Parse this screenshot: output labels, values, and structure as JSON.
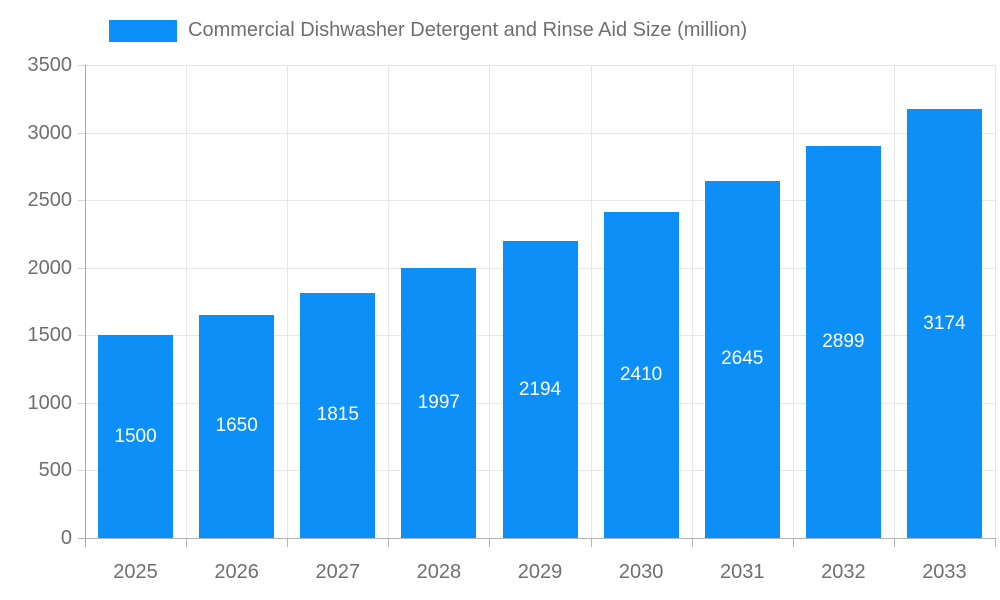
{
  "chart_data": {
    "type": "bar",
    "title": "Commercial Dishwasher Detergent and Rinse Aid Size (million)",
    "categories": [
      "2025",
      "2026",
      "2027",
      "2028",
      "2029",
      "2030",
      "2031",
      "2032",
      "2033"
    ],
    "values": [
      1500,
      1650,
      1815,
      1997,
      2194,
      2410,
      2645,
      2899,
      3174
    ],
    "bar_value_labels": [
      "1500",
      "1650",
      "1815",
      "1997",
      "2194",
      "2410",
      "2645",
      "2899",
      "3174"
    ],
    "xlabel": "",
    "ylabel": "",
    "ylim": [
      0,
      3500
    ],
    "ytick_step": 500,
    "ytick_labels": [
      "0",
      "500",
      "1000",
      "1500",
      "2000",
      "2500",
      "3000",
      "3500"
    ],
    "grid": true,
    "legend_position": "top",
    "legend_entries": [
      {
        "label": "Commercial Dishwasher Detergent and Rinse Aid Size (million)",
        "color": "#0d8ff8"
      }
    ],
    "colors": {
      "bar": "#0d8ff8",
      "bar_label": "#ffffff",
      "axis_text": "#6f6f6f",
      "grid_line": "#e7e7e7",
      "axis_line": "#b3b3b3"
    }
  }
}
